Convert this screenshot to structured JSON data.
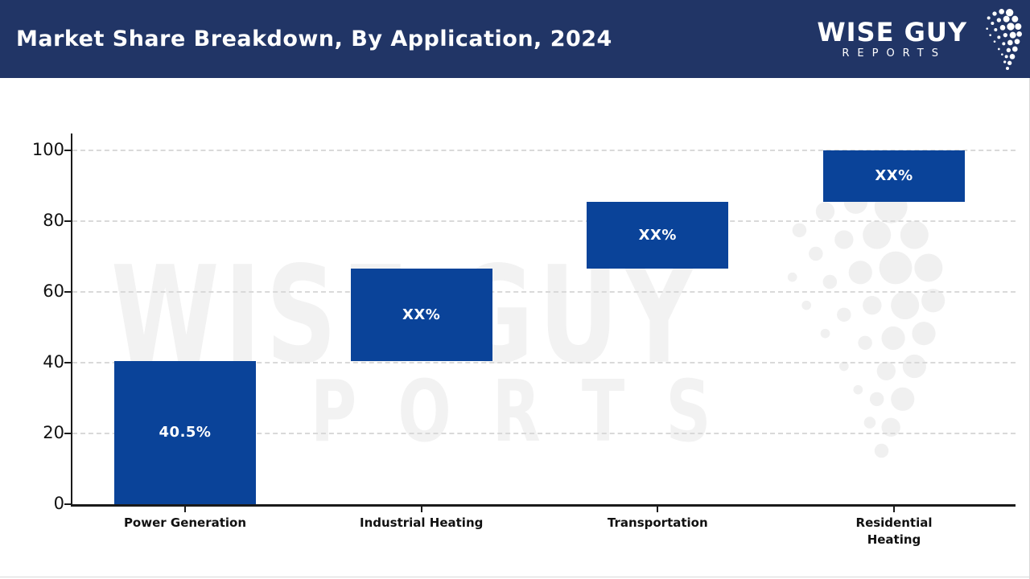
{
  "header": {
    "title": "Market Share Breakdown, By Application, 2024",
    "logo": {
      "line1": "WISE GUY",
      "line2": "REPORTS"
    }
  },
  "watermark": {
    "line1": "WISE GUY",
    "line2": "P O R T S"
  },
  "colors": {
    "header_bg": "#213566",
    "bar_fill": "#0a4399",
    "bar_label_text": "#ffffff",
    "axis": "#1a1a1a",
    "grid": "#d9d9d9",
    "watermark_text": "#f2f2f2"
  },
  "chart_data": {
    "type": "bar",
    "subtype": "waterfall",
    "title": "Market Share Breakdown, By Application, 2024",
    "categories": [
      "Power Generation",
      "Industrial Heating",
      "Transportation",
      "Residential Heating"
    ],
    "segments": [
      {
        "category": "Power Generation",
        "start": 0,
        "end": 40.5,
        "label": "40.5%"
      },
      {
        "category": "Industrial Heating",
        "start": 40.5,
        "end": 66.5,
        "label": "XX%"
      },
      {
        "category": "Transportation",
        "start": 66.5,
        "end": 85.5,
        "label": "XX%"
      },
      {
        "category": "Residential Heating",
        "start": 85.5,
        "end": 100,
        "label": "XX%"
      }
    ],
    "yticks": [
      0,
      20,
      40,
      60,
      80,
      100
    ],
    "ylim": [
      0,
      100
    ],
    "xlabel": "",
    "ylabel": "",
    "grid": "horizontal-dashed",
    "legend": "none"
  }
}
